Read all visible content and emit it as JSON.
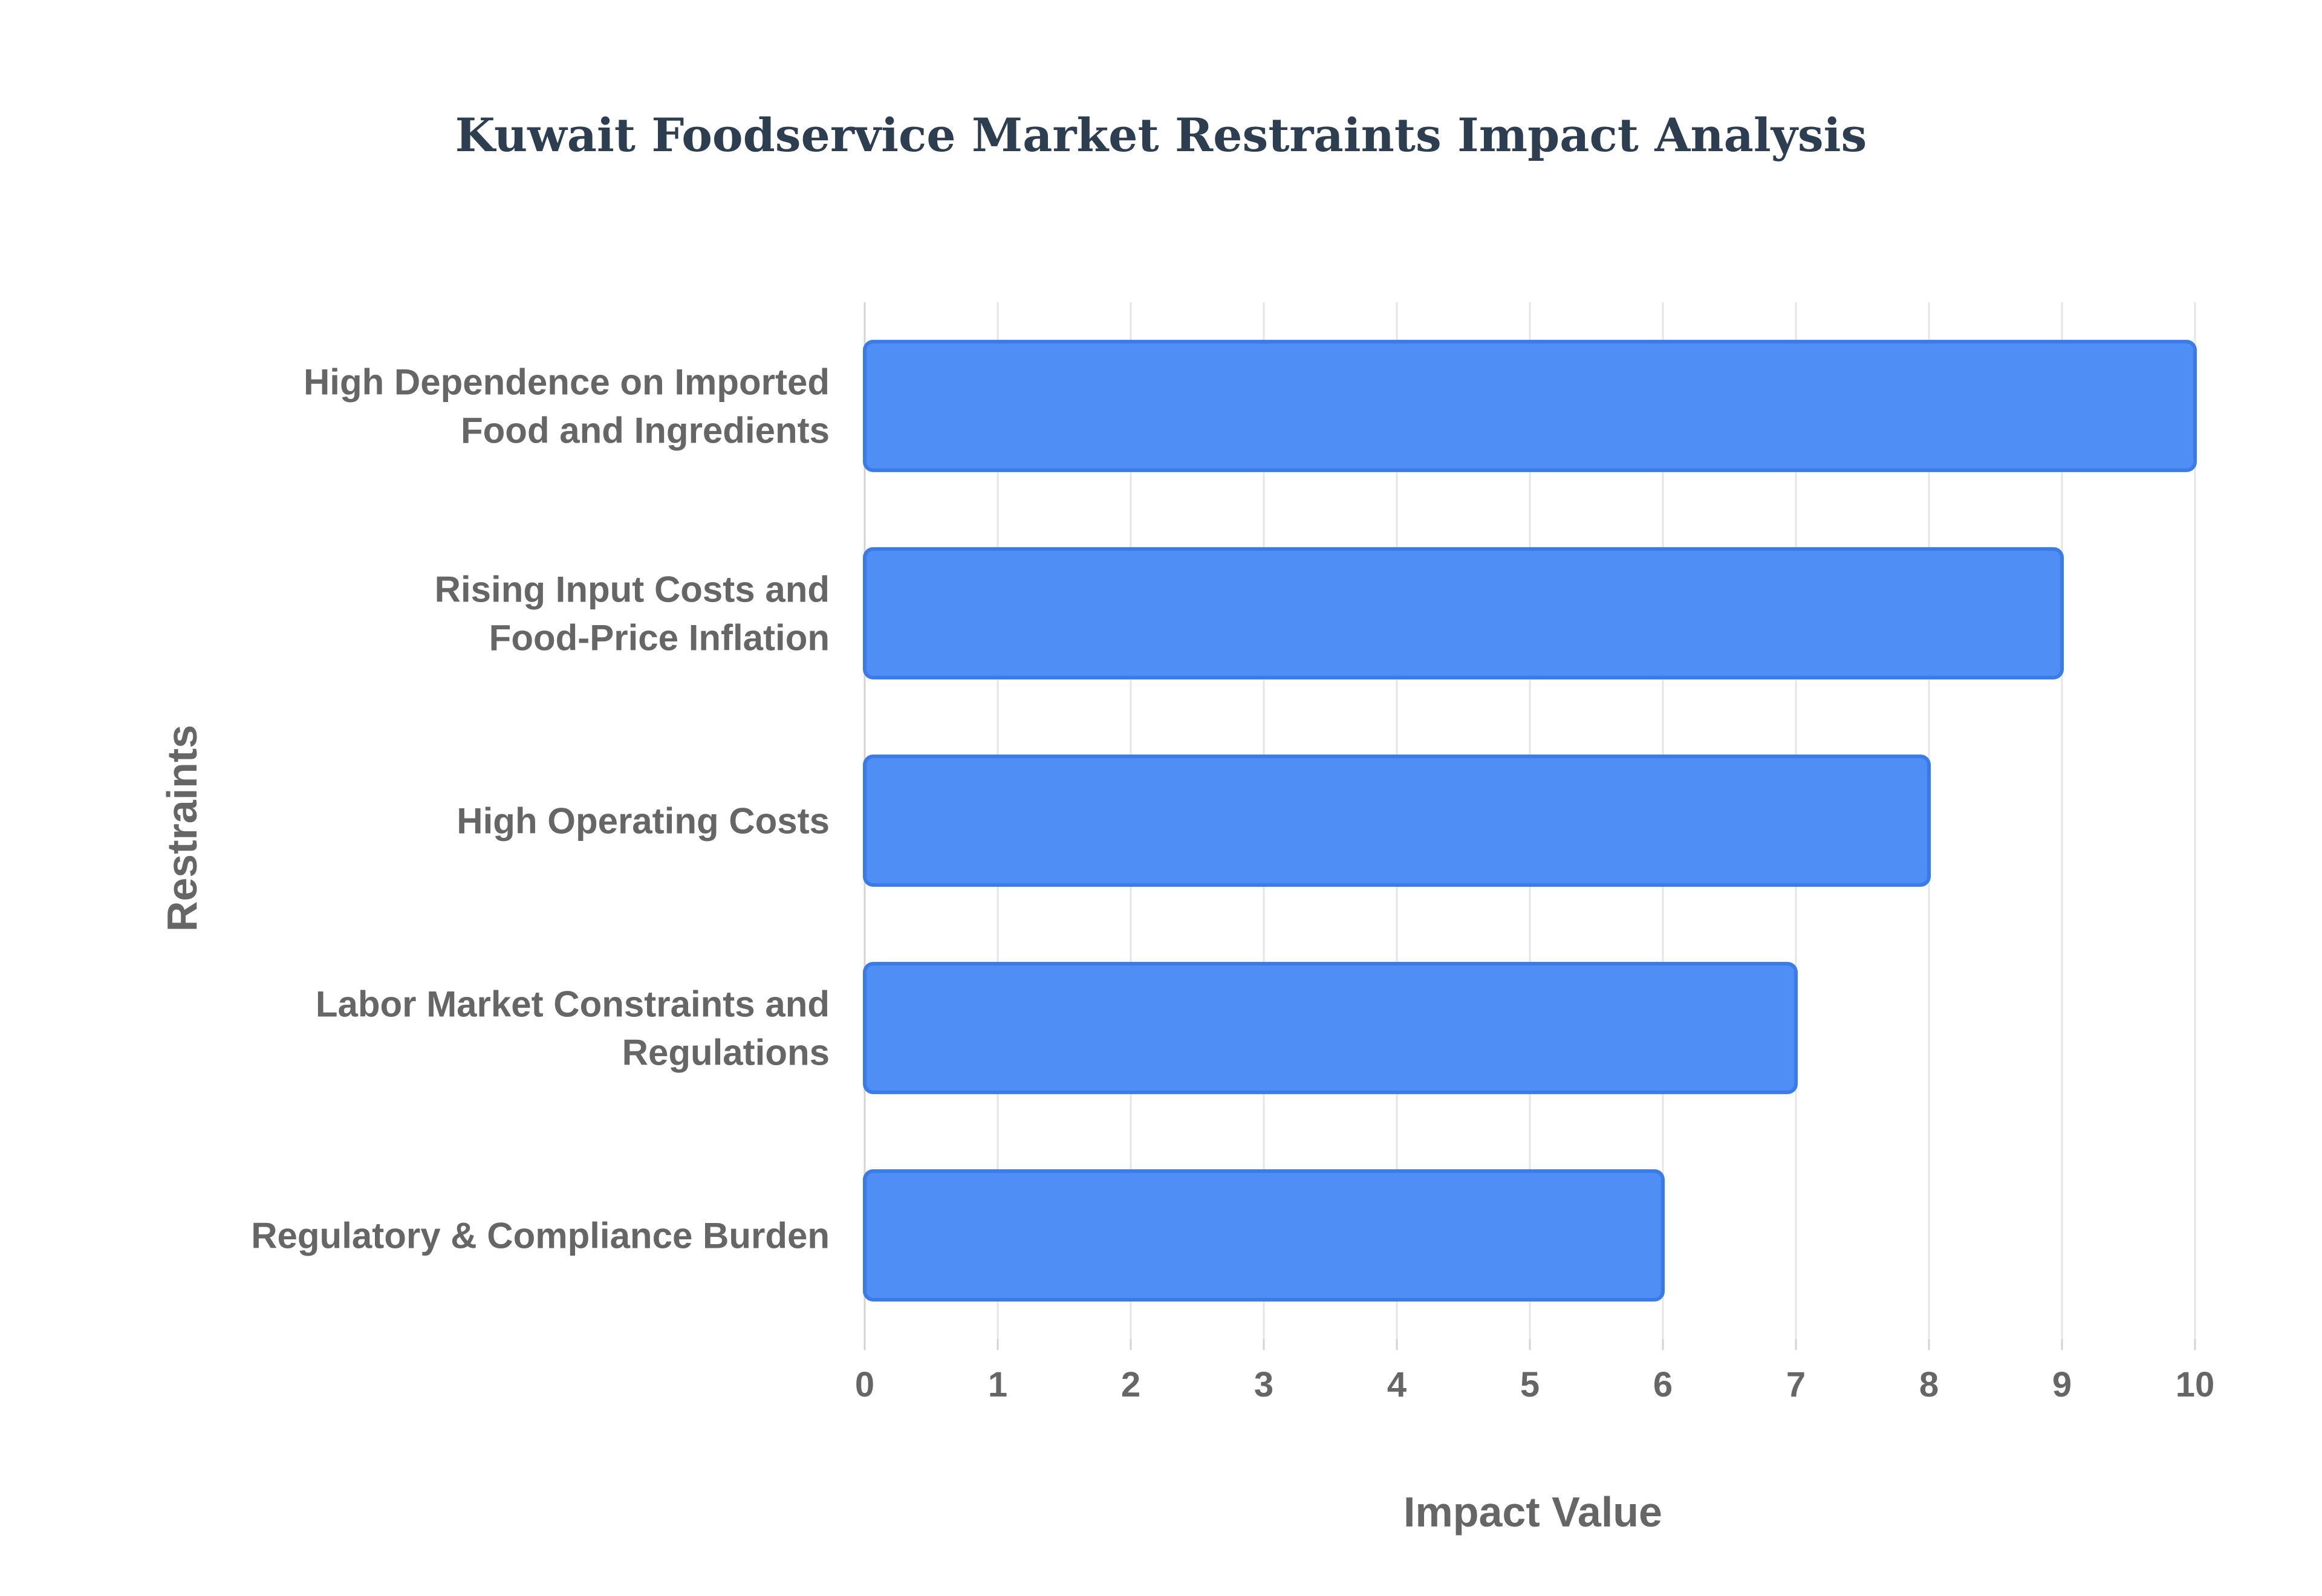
{
  "chart_data": {
    "type": "bar",
    "orientation": "horizontal",
    "title": "Kuwait Foodservice Market Restraints Impact Analysis",
    "xlabel": "Impact Value",
    "ylabel": "Restraints",
    "categories": [
      [
        "High Dependence on Imported",
        "Food and Ingredients"
      ],
      [
        "Rising Input Costs and",
        "Food-Price Inflation"
      ],
      [
        "High Operating Costs"
      ],
      [
        "Labor Market Constraints and",
        "Regulations"
      ],
      [
        "Regulatory & Compliance Burden"
      ]
    ],
    "values": [
      10,
      9,
      8,
      7,
      6
    ],
    "xlim": [
      0,
      10
    ],
    "xticks": [
      "0",
      "1",
      "2",
      "3",
      "4",
      "5",
      "6",
      "7",
      "8",
      "9",
      "10"
    ],
    "grid": true,
    "legend": "none",
    "colors": {
      "bar_fill": "#4f8ef5",
      "bar_stroke": "#3b7be8",
      "title": "#2c3e50",
      "text": "#666666",
      "grid": "#e6e6e6"
    }
  }
}
